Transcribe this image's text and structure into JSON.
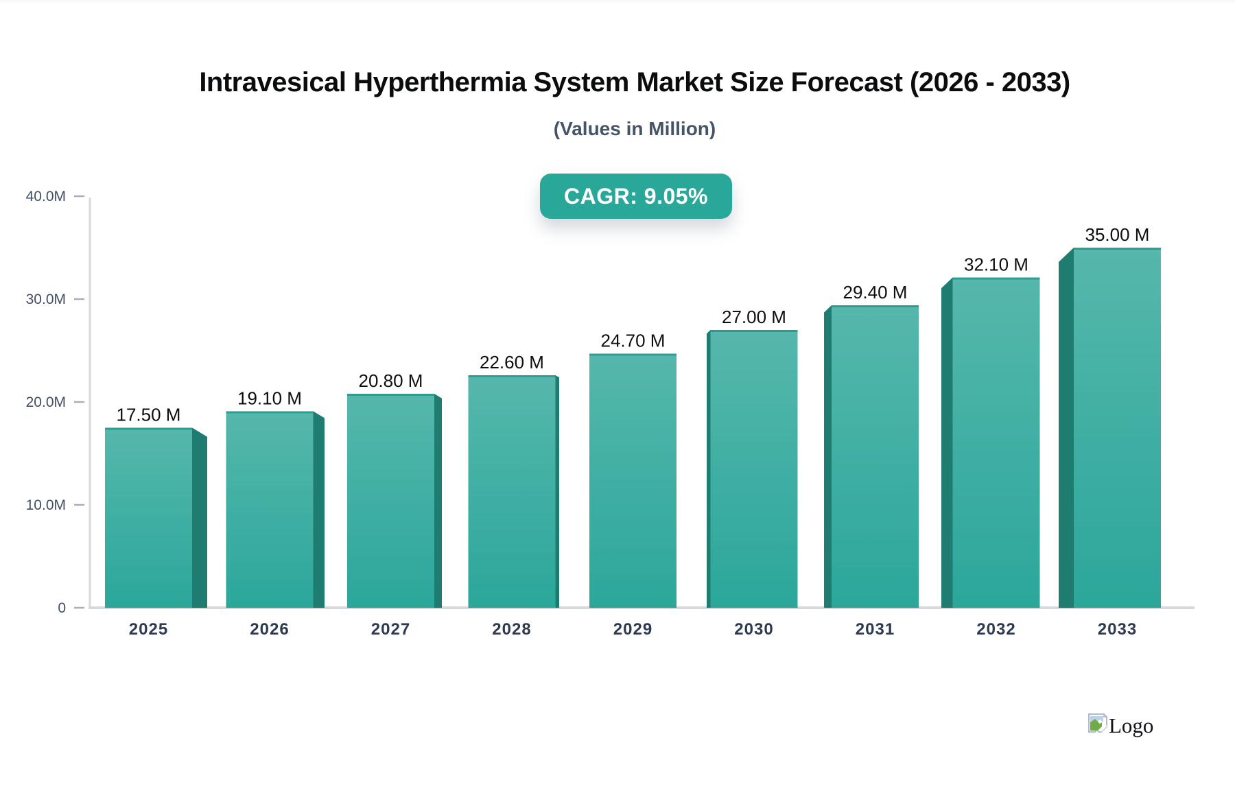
{
  "header": {
    "title": "Intravesical Hyperthermia System Market Size Forecast (2026 - 2033)",
    "subtitle": "(Values in Million)",
    "cagr_label": "CAGR: 9.05%"
  },
  "colors": {
    "bar_gradient_top": "#56b7ac",
    "bar_gradient_bottom": "#2ba79a",
    "bar_side": "#1e7c71",
    "bar_top_edge": "#2d9c91",
    "badge_bg": "#29a89a",
    "axis_line": "#d7d8dd",
    "tick_dash": "#a9aeb9",
    "y_tick_label": "#414e63",
    "category_label": "#2e3a50",
    "value_label": "#0e0e10"
  },
  "chart_data": {
    "type": "bar",
    "title": "Intravesical Hyperthermia System Market Size Forecast (2026 - 2033)",
    "subtitle": "(Values in Million)",
    "cagr": "9.05%",
    "categories": [
      "2025",
      "2026",
      "2027",
      "2028",
      "2029",
      "2030",
      "2031",
      "2032",
      "2033"
    ],
    "values": [
      17.5,
      19.1,
      20.8,
      22.6,
      24.7,
      27.0,
      29.4,
      32.1,
      35.0
    ],
    "value_labels": [
      "17.50 M",
      "19.10 M",
      "20.80 M",
      "22.60 M",
      "24.70 M",
      "27.00 M",
      "29.40 M",
      "32.10 M",
      "35.00 M"
    ],
    "unit": "Million",
    "ylim": [
      0,
      40
    ],
    "yticks": [
      {
        "value": 0,
        "label": "0"
      },
      {
        "value": 10,
        "label": "10.0M"
      },
      {
        "value": 20,
        "label": "20.0M"
      },
      {
        "value": 30,
        "label": "30.0M"
      },
      {
        "value": 40,
        "label": "40.0M"
      }
    ],
    "grid": false,
    "legend": false,
    "value_labels_position": "above-bars",
    "style": "3d-extruded-bars"
  },
  "logo": {
    "alt_text": "Logo"
  }
}
